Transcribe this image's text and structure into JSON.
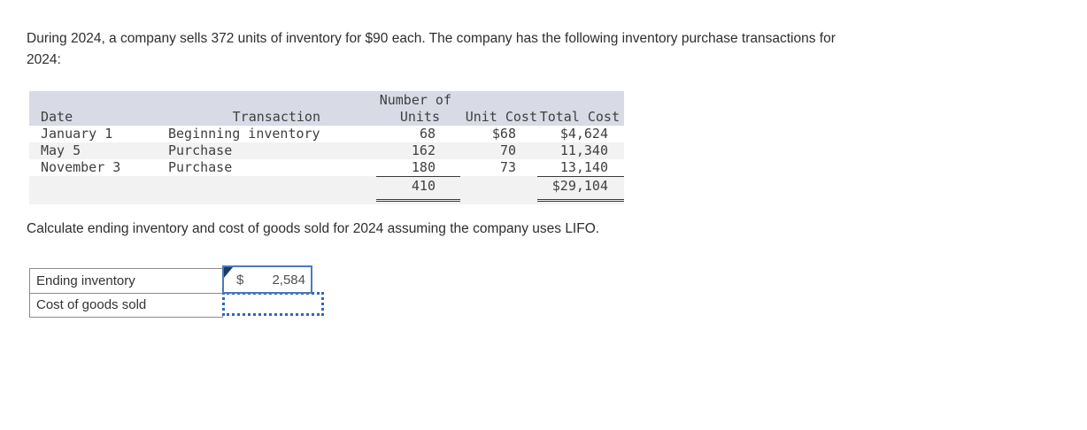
{
  "problem": {
    "line1": "During 2024, a company sells 372 units of inventory for $90 each. The company has the following inventory purchase transactions for",
    "line2": "2024:",
    "instruction": "Calculate ending inventory and cost of goods sold for 2024 assuming the company uses LIFO."
  },
  "inventory_table": {
    "headers": {
      "units_top": "Number of",
      "date": "Date",
      "transaction": "Transaction",
      "units": "Units",
      "unit_cost": "Unit Cost",
      "total_cost": "Total Cost"
    },
    "rows": [
      {
        "date": "January 1",
        "transaction": "Beginning inventory",
        "units": "68",
        "unit_cost": "$68",
        "total_cost": "$4,624"
      },
      {
        "date": "May 5",
        "transaction": "Purchase",
        "units": "162",
        "unit_cost": "70",
        "total_cost": "11,340"
      },
      {
        "date": "November 3",
        "transaction": "Purchase",
        "units": "180",
        "unit_cost": "73",
        "total_cost": "13,140"
      }
    ],
    "total": {
      "units": "410",
      "total_cost": "$29,104"
    }
  },
  "answer_table": {
    "rows": [
      {
        "label": "Ending inventory",
        "currency": "$",
        "value": "2,584"
      },
      {
        "label": "Cost of goods sold",
        "currency": "",
        "value": ""
      }
    ]
  },
  "colors": {
    "table_header_fill": "#d8dbe6",
    "table_stripe_fill": "#f2f2f2",
    "table_text": "#3f3f3f",
    "body_text": "#2e2e2e",
    "grid_border": "#8c8c8c",
    "rule_color": "#3a3a3a",
    "selected_cell_border": "#4a7bc0",
    "active_cell_border": "#2e66c8",
    "flag_color": "#1b3a66",
    "value_text": "#515151"
  }
}
